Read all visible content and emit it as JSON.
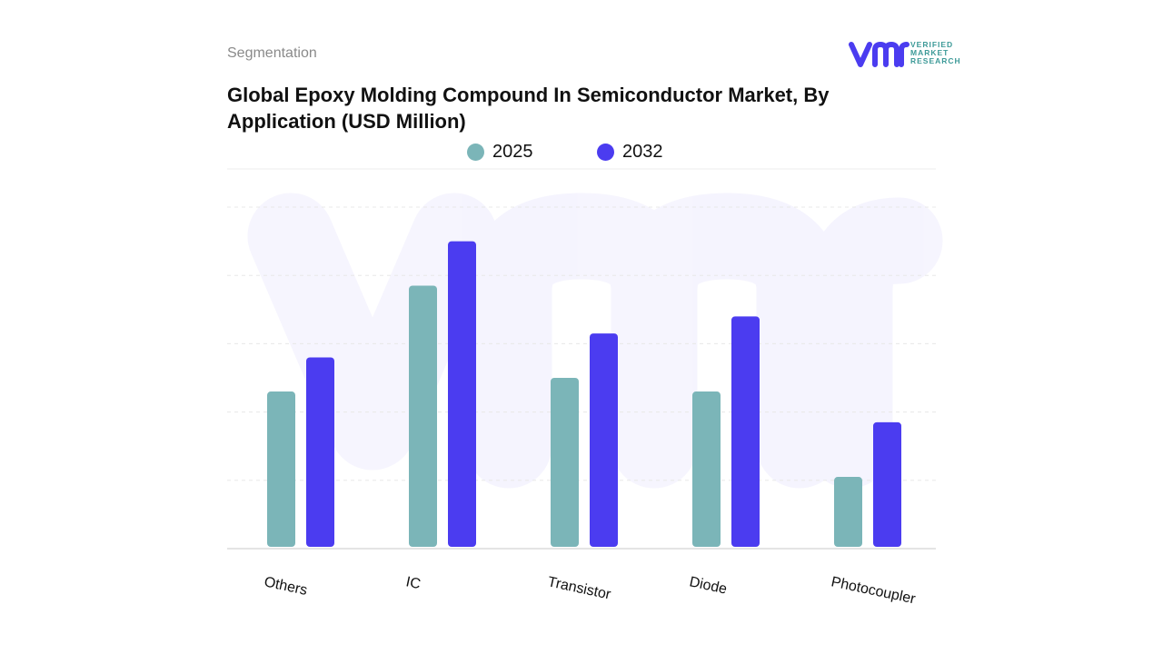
{
  "header": {
    "segment_label": "Segmentation",
    "title": "Global Epoxy Molding Compound In Semiconductor Market, By Application (USD Million)"
  },
  "logo": {
    "mark_icon": "vmr-logo-icon",
    "text_lines": [
      "VERIFIED",
      "MARKET",
      "RESEARCH"
    ],
    "brand_color": "#4b3cf0",
    "accent_color": "#3d9a98"
  },
  "legend": [
    {
      "label": "2025",
      "color": "#7bb5b8"
    },
    {
      "label": "2032",
      "color": "#4b3cf0"
    }
  ],
  "chart_data": {
    "type": "bar",
    "categories": [
      "Others",
      "IC",
      "Transistor",
      "Diode",
      "Photocoupler"
    ],
    "series": [
      {
        "name": "2025",
        "color": "#7bb5b8",
        "values": [
          46,
          77,
          50,
          46,
          21
        ]
      },
      {
        "name": "2032",
        "color": "#4b3cf0",
        "values": [
          56,
          90,
          63,
          68,
          37
        ]
      }
    ],
    "ylim": [
      0,
      100
    ],
    "grid": true,
    "legend_position": "top-center",
    "tick_label_rotation_deg": 12
  }
}
